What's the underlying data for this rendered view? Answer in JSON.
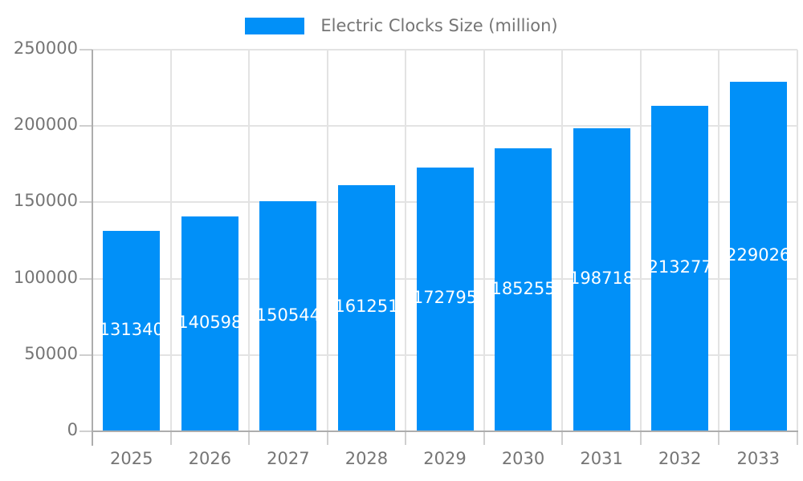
{
  "legend": {
    "series_label": "Electric Clocks Size (million)"
  },
  "chart_data": {
    "type": "bar",
    "title": "Electric Clocks Size (million)",
    "categories": [
      "2025",
      "2026",
      "2027",
      "2028",
      "2029",
      "2030",
      "2031",
      "2032",
      "2033"
    ],
    "values": [
      131340,
      140598,
      150544,
      161251,
      172795,
      185255,
      198718,
      213277,
      229026
    ],
    "bar_labels": [
      "131340",
      "140598",
      "150544",
      "161251",
      "172795",
      "185255",
      "198718",
      "213277",
      "229026"
    ],
    "xlabel": "",
    "ylabel": "",
    "ylim": [
      0,
      250000
    ],
    "yticks": [
      0,
      50000,
      100000,
      150000,
      200000,
      250000
    ],
    "ytick_labels": [
      "0",
      "50000",
      "100000",
      "150000",
      "200000",
      "250000"
    ],
    "grid": "on",
    "legend_position": "top-center",
    "bar_label_position": "inside-middle",
    "colors": {
      "bar": "#0190F8",
      "bar_label_text": "#FFFFFF",
      "axis_line": "#ADADAD",
      "grid_line": "#E3E3E3",
      "tick_mark": "#CFCFCF",
      "tick_text": "#757575",
      "background": "#FFFFFF"
    }
  }
}
